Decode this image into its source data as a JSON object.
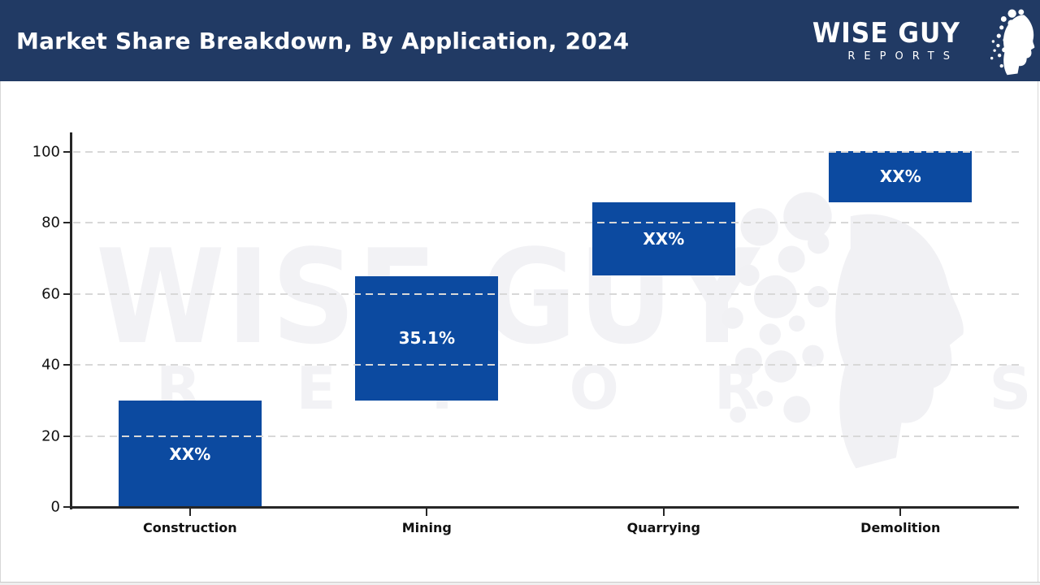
{
  "header": {
    "title": "Market Share Breakdown, By Application, 2024",
    "brand_line1": "WISE GUY",
    "brand_line2": "REPORTS"
  },
  "watermark": {
    "line1": "WISE GUY",
    "line2": "R E P O R T S"
  },
  "colors": {
    "header_bg": "#213A64",
    "bar": "#0C4AA0",
    "bar_label": "#FFFFFF",
    "grid": "#D8D8D8",
    "axis": "#262626",
    "tick_label": "#111111",
    "watermark": "#F2F2F5"
  },
  "chart_data": {
    "type": "bar",
    "subtype": "waterfall",
    "title": "Market Share Breakdown, By Application, 2024",
    "xlabel": "",
    "ylabel": "",
    "categories": [
      "Construction",
      "Mining",
      "Quarrying",
      "Demolition"
    ],
    "segments": [
      {
        "category": "Construction",
        "start": 0,
        "end": 30,
        "label": "XX%"
      },
      {
        "category": "Mining",
        "start": 30,
        "end": 65.1,
        "label": "35.1%"
      },
      {
        "category": "Quarrying",
        "start": 65.1,
        "end": 85.9,
        "label": "XX%"
      },
      {
        "category": "Demolition",
        "start": 85.9,
        "end": 100.2,
        "label": "XX%"
      }
    ],
    "yticks": [
      0,
      20,
      40,
      60,
      80,
      100
    ],
    "ylim": [
      0,
      105.3
    ],
    "grid": "horizontal-dashed",
    "legend": false
  }
}
